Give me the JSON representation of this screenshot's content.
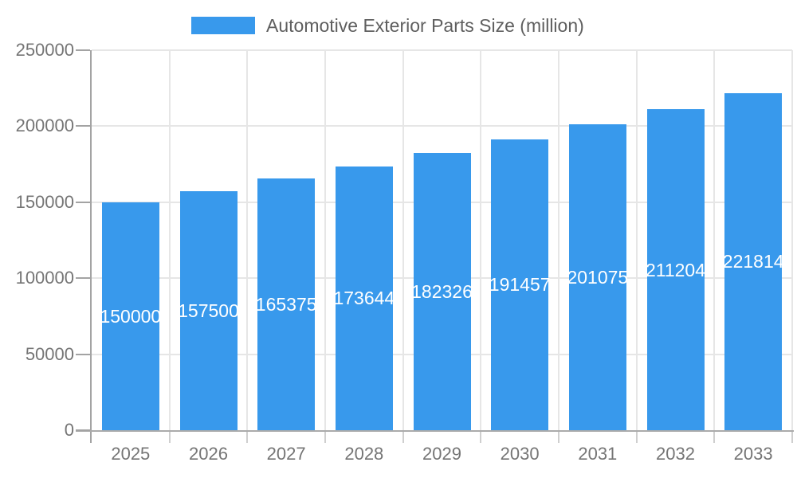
{
  "legend": {
    "label": "Automotive Exterior Parts Size (million)"
  },
  "chart_data": {
    "type": "bar",
    "title": "Automotive Exterior Parts Size (million)",
    "series_name": "Automotive Exterior Parts Size (million)",
    "categories": [
      "2025",
      "2026",
      "2027",
      "2028",
      "2029",
      "2030",
      "2031",
      "2032",
      "2033"
    ],
    "values": [
      150000,
      157500,
      165375,
      173644,
      182326,
      191457,
      201075,
      211204,
      221814
    ],
    "data_labels": [
      "150000",
      "157500",
      "165375",
      "173644",
      "182326",
      "191457",
      "201075",
      "211204",
      "221814"
    ],
    "xlabel": "",
    "ylabel": "",
    "ylim": [
      0,
      250000
    ],
    "ytick_interval": 50000,
    "ytick_labels": [
      "0",
      "50000",
      "100000",
      "150000",
      "200000",
      "250000"
    ],
    "grid": true,
    "legend_position": "top",
    "colors": {
      "bar": "#3899ec",
      "bar_label_text": "#ffffff",
      "gridline": "#e6e6e6",
      "axis_line": "#a3a3a3",
      "tick_text": "#757575",
      "legend_text": "#5f5f5f",
      "background": "#ffffff"
    }
  }
}
